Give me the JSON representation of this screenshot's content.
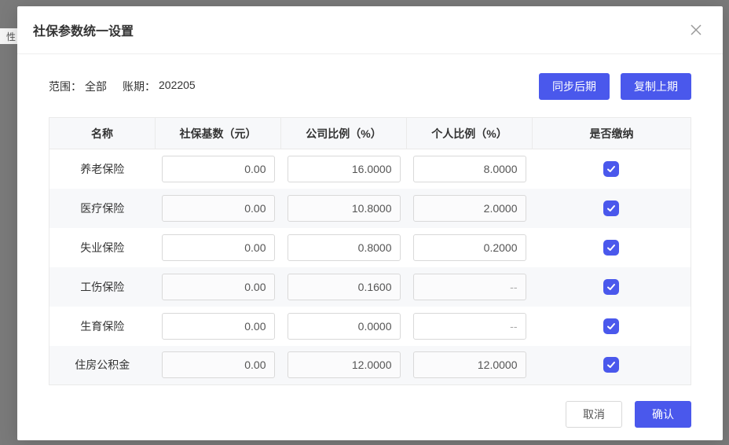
{
  "modal": {
    "title": "社保参数统一设置",
    "scope_label": "范围：",
    "scope_value": "全部",
    "period_label": "账期：",
    "period_value": "202205",
    "sync_next_label": "同步后期",
    "copy_prev_label": "复制上期",
    "cancel_label": "取消",
    "confirm_label": "确认"
  },
  "table": {
    "headers": {
      "name": "名称",
      "base": "社保基数（元）",
      "company_ratio": "公司比例（%）",
      "personal_ratio": "个人比例（%）",
      "enabled": "是否缴纳"
    },
    "rows": [
      {
        "name": "养老保险",
        "base": "0.00",
        "company": "16.0000",
        "personal": "8.0000",
        "personal_disabled": false,
        "enabled": true
      },
      {
        "name": "医疗保险",
        "base": "0.00",
        "company": "10.8000",
        "personal": "2.0000",
        "personal_disabled": false,
        "enabled": true
      },
      {
        "name": "失业保险",
        "base": "0.00",
        "company": "0.8000",
        "personal": "0.2000",
        "personal_disabled": false,
        "enabled": true
      },
      {
        "name": "工伤保险",
        "base": "0.00",
        "company": "0.1600",
        "personal": "--",
        "personal_disabled": true,
        "enabled": true
      },
      {
        "name": "生育保险",
        "base": "0.00",
        "company": "0.0000",
        "personal": "--",
        "personal_disabled": true,
        "enabled": true
      },
      {
        "name": "住房公积金",
        "base": "0.00",
        "company": "12.0000",
        "personal": "12.0000",
        "personal_disabled": false,
        "enabled": true
      }
    ]
  },
  "colors": {
    "primary": "#4a58ec",
    "border": "#d9d9d9",
    "text": "#333333",
    "muted": "#999999",
    "row_alt": "#f7f8fa",
    "background": "#ffffff"
  },
  "backdrop_fragment": "性"
}
